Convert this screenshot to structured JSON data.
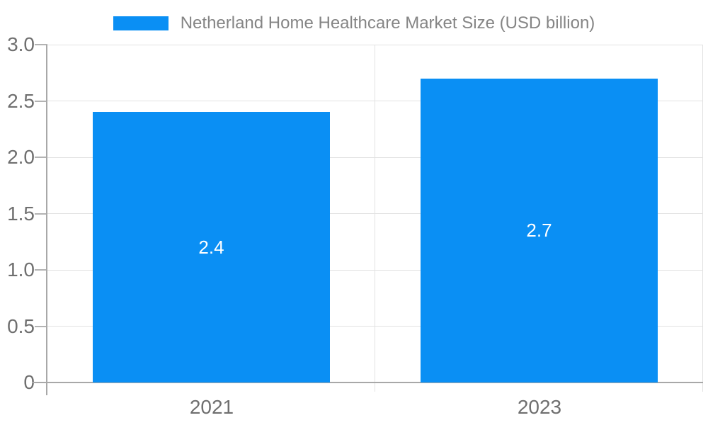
{
  "legend": {
    "label": "Netherland Home Healthcare Market Size (USD billion)",
    "swatch_color": "#0a8ff4"
  },
  "chart_data": {
    "type": "bar",
    "title": "Netherland Home Healthcare Market Size (USD billion)",
    "categories": [
      "2021",
      "2023"
    ],
    "values": [
      2.4,
      2.7
    ],
    "data_labels": [
      "2.4",
      "2.7"
    ],
    "series": [
      {
        "name": "Netherland Home Healthcare Market Size (USD billion)",
        "values": [
          2.4,
          2.7
        ]
      }
    ],
    "xlabel": "",
    "ylabel": "",
    "ylim": [
      0,
      3.0
    ],
    "yticks": [
      0,
      0.5,
      1.0,
      1.5,
      2.0,
      2.5,
      3.0
    ],
    "ytick_labels": [
      "0",
      "0.5",
      "1.0",
      "1.5",
      "2.0",
      "2.5",
      "3.0"
    ],
    "grid": true,
    "legend_position": "top",
    "bar_color": "#0a8ff4",
    "value_label_color": "#ffffff"
  },
  "colors": {
    "bar": "#0a8ff4",
    "axis": "#a8a8a8",
    "gridline": "#e2e2e2",
    "tick_text": "#6f6f6f",
    "legend_text": "#858585",
    "background": "#ffffff"
  }
}
